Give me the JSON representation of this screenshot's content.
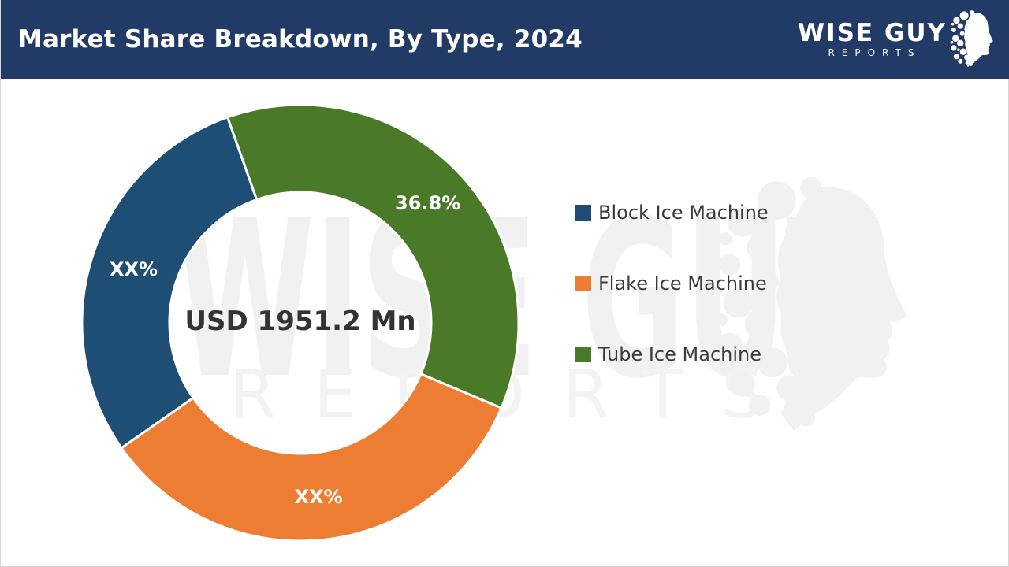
{
  "header": {
    "title": "Market Share Breakdown, By Type, 2024"
  },
  "logo": {
    "brand": "WISE GUY",
    "sub": "REPORTS",
    "face_icon": "dotted-head-profile"
  },
  "watermark": {
    "brand": "WISE GUY",
    "sub": "REPORTS",
    "face_icon": "dotted-head-profile"
  },
  "chart_data": {
    "type": "pie",
    "donut": true,
    "title": "Market Share Breakdown, By Type, 2024",
    "center_label": "USD 1951.2 Mn",
    "start_angle_deg": -19.5,
    "clockwise": true,
    "units": "percent share",
    "slices": [
      {
        "id": "tube-ice-machine",
        "name": "Tube Ice Machine",
        "value": 36.8,
        "display_label": "36.8%",
        "color": "#4a7a28"
      },
      {
        "id": "flake-ice-machine",
        "name": "Flake Ice Machine",
        "value": 33.9,
        "display_label": "XX%",
        "color": "#ec7d33"
      },
      {
        "id": "block-ice-machine",
        "name": "Block Ice Machine",
        "value": 29.3,
        "display_label": "XX%",
        "color": "#1f4e74"
      }
    ],
    "legend_position": "right",
    "grid": false
  },
  "legend": {
    "items": [
      {
        "id": "block-ice-machine",
        "label": "Block Ice Machine",
        "color": "#1f4e74"
      },
      {
        "id": "flake-ice-machine",
        "label": "Flake Ice Machine",
        "color": "#ec7d33"
      },
      {
        "id": "tube-ice-machine",
        "label": "Tube Ice Machine",
        "color": "#4a7a28"
      }
    ]
  },
  "colors": {
    "header_bg": "#223a66",
    "center_text": "#333333",
    "legend_text": "#3b3b3b",
    "watermark": "#f1f1f1",
    "slice_separator": "#ffffff"
  }
}
